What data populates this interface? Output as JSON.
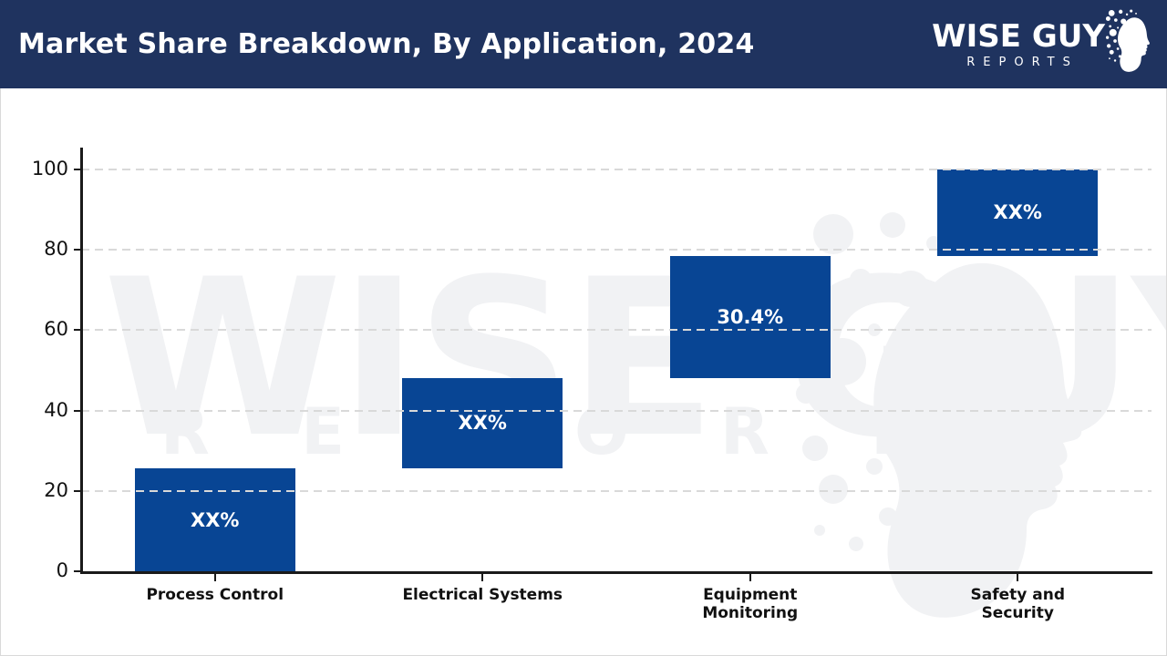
{
  "header": {
    "title": "Market Share Breakdown, By Application, 2024",
    "logo": {
      "line1": "WISE GUY",
      "line2": "REPORTS"
    }
  },
  "watermark": {
    "line1": "WISE GUY",
    "line2": "R E P O R T S"
  },
  "chart_data": {
    "type": "bar",
    "subtype": "waterfall-floating-bars",
    "title": "Market Share Breakdown, By Application, 2024",
    "categories": [
      "Process Control",
      "Electrical Systems",
      "Equipment Monitoring",
      "Safety and Security"
    ],
    "category_label_lines": [
      [
        "Process Control"
      ],
      [
        "Electrical Systems"
      ],
      [
        "Equipment",
        "Monitoring"
      ],
      [
        "Safety and",
        "Security"
      ]
    ],
    "segments": [
      {
        "category": "Process Control",
        "start": 0,
        "end": 25.6,
        "label": "XX%"
      },
      {
        "category": "Electrical Systems",
        "start": 25.6,
        "end": 48.1,
        "label": "XX%"
      },
      {
        "category": "Equipment Monitoring",
        "start": 48.1,
        "end": 78.5,
        "label": "30.4%"
      },
      {
        "category": "Safety and Security",
        "start": 78.5,
        "end": 100,
        "label": "XX%"
      }
    ],
    "yticks": [
      "0",
      "20",
      "40",
      "60",
      "80",
      "100"
    ],
    "ylim": [
      0,
      100
    ],
    "xlabel": "",
    "ylabel": "",
    "grid": "horizontal dashed, drawn over bars",
    "legend": null
  },
  "colors": {
    "header_bg": "#1f335f",
    "bar": "#084594",
    "grid": "#d9d9d9",
    "axis": "#1a1a1a",
    "watermark": "#f1f2f4",
    "bar_label": "#ffffff",
    "title_text": "#ffffff"
  }
}
